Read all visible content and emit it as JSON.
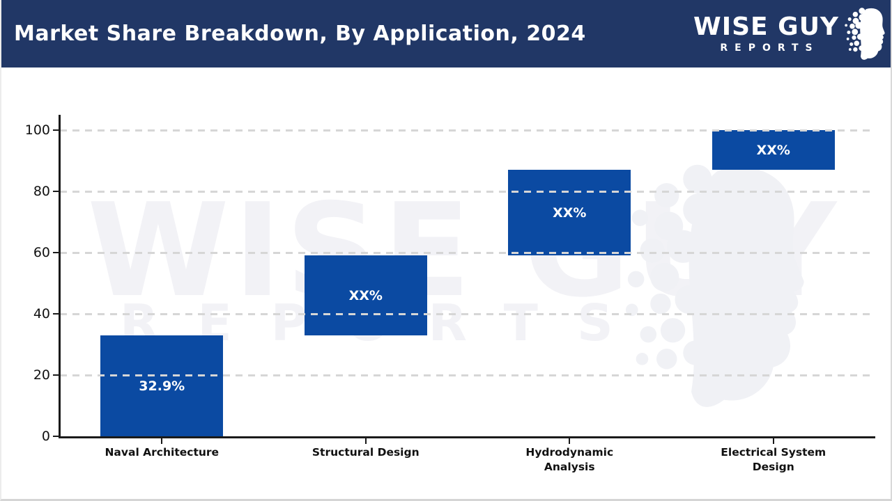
{
  "header": {
    "title": "Market Share Breakdown, By Application, 2024",
    "logo": {
      "line1": "WISE GUY",
      "line2": "REPORTS"
    }
  },
  "watermark": {
    "line1": "WISE GUY",
    "line2": "REPORTS"
  },
  "chart_data": {
    "type": "bar",
    "subtype": "waterfall",
    "title": "Market Share Breakdown, By Application, 2024",
    "categories": [
      "Naval Architecture",
      "Structural Design",
      "Hydrodynamic Analysis",
      "Electrical System Design"
    ],
    "category_label_lines": [
      [
        "Naval Architecture"
      ],
      [
        "Structural Design"
      ],
      [
        "Hydrodynamic",
        "Analysis"
      ],
      [
        "Electrical System",
        "Design"
      ]
    ],
    "segments": [
      {
        "category": "Naval Architecture",
        "start": 0,
        "end": 32.9,
        "label": "32.9%"
      },
      {
        "category": "Structural Design",
        "start": 32.9,
        "end": 59,
        "label": "XX%"
      },
      {
        "category": "Hydrodynamic Analysis",
        "start": 59,
        "end": 87,
        "label": "XX%"
      },
      {
        "category": "Electrical System Design",
        "start": 87,
        "end": 100,
        "label": "XX%"
      }
    ],
    "ylim": [
      0,
      100
    ],
    "yticks": [
      0,
      20,
      40,
      60,
      80,
      100
    ],
    "grid": {
      "horizontal": true,
      "style": "dashed",
      "color": "#d6d6d6",
      "drawn_over_bars": true
    },
    "legend": null,
    "colors": {
      "bar": "#0b4aa2",
      "bar_label": "#ffffff",
      "axis": "#1a1a1a",
      "header_bg": "#213766",
      "watermark": "#f2f2f6"
    }
  }
}
